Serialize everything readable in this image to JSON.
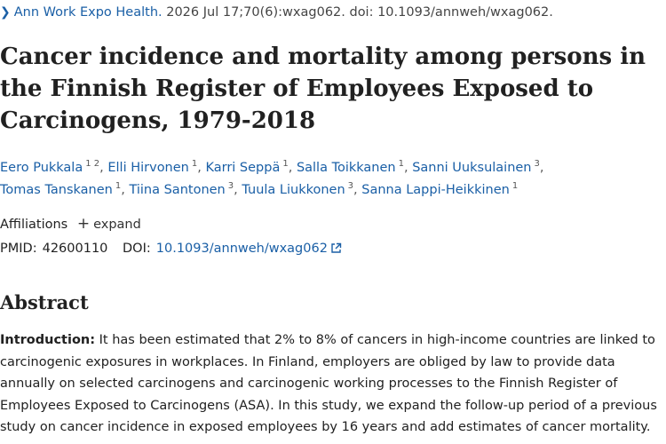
{
  "citation": {
    "journal": "Ann Work Expo Health.",
    "details": " 2026 Jul 17;70(6):wxag062. doi: 10.1093/annweh/wxag062."
  },
  "title": "Cancer incidence and mortality among persons in the Finnish Register of Employees Exposed to Carcinogens, 1979-2018",
  "authors": [
    {
      "name": "Eero Pukkala",
      "sup": "1 2"
    },
    {
      "name": "Elli Hirvonen",
      "sup": "1"
    },
    {
      "name": "Karri Seppä",
      "sup": "1"
    },
    {
      "name": "Salla Toikkanen",
      "sup": "1"
    },
    {
      "name": "Sanni Uuksulainen",
      "sup": "3"
    },
    {
      "name": "Tomas Tanskanen",
      "sup": "1"
    },
    {
      "name": "Tiina Santonen",
      "sup": "3"
    },
    {
      "name": "Tuula Liukkonen",
      "sup": "3"
    },
    {
      "name": "Sanna Lappi-Heikkinen",
      "sup": "1"
    }
  ],
  "affiliations": {
    "label": "Affiliations",
    "expand_label": "expand"
  },
  "ids": {
    "pmid_label": "PMID:",
    "pmid": "42600110",
    "doi_label": "DOI:",
    "doi": "10.1093/annweh/wxag062"
  },
  "abstract": {
    "heading": "Abstract",
    "intro_label": "Introduction:",
    "intro_text": " It has been estimated that 2% to 8% of cancers in high-income countries are linked to carcinogenic exposures in workplaces. In Finland, employers are obliged by law to provide data annually on selected carcinogens and carcinogenic working processes to the Finnish Register of Employees Exposed to Carcinogens (ASA). In this study, we expand the follow-up period of a previous study on cancer incidence in exposed employees by 16 years and add estimates of cancer mortality."
  }
}
